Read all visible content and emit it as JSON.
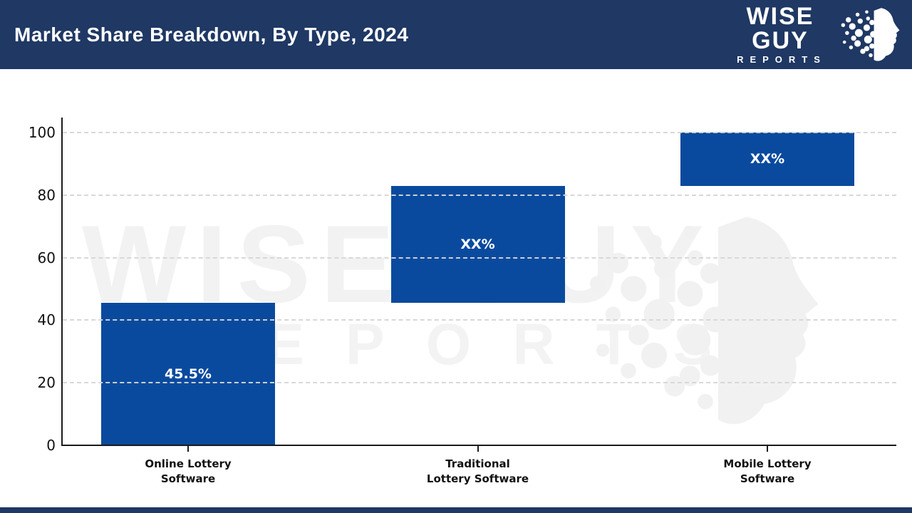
{
  "header": {
    "title": "Market Share Breakdown, By Type, 2024",
    "logo": {
      "line1": "WISE GUY",
      "line2": "REPORTS"
    }
  },
  "watermark": {
    "line1": "WISE GUY",
    "line2": "REPORTS"
  },
  "colors": {
    "header_bg": "#1f3864",
    "bar": "#0a4a9e",
    "gridline": "#d6d6d6",
    "axis": "#1a1a1a",
    "watermark": "#f2f2f2"
  },
  "chart_data": {
    "type": "bar",
    "subtype": "waterfall-stacked",
    "title": "Market Share Breakdown, By Type, 2024",
    "xlabel": "",
    "ylabel": "",
    "ylim": [
      0,
      105
    ],
    "yticks": [
      0,
      20,
      40,
      60,
      80,
      100
    ],
    "grid": "horizontal-dashed",
    "legend": "none",
    "categories": [
      [
        "Online Lottery",
        "Software"
      ],
      [
        "Traditional",
        "Lottery Software"
      ],
      [
        "Mobile Lottery",
        "Software"
      ]
    ],
    "segments": [
      {
        "start": 0,
        "end": 45.5,
        "label": "45.5%"
      },
      {
        "start": 45.5,
        "end": 83,
        "label": "XX%"
      },
      {
        "start": 83,
        "end": 100,
        "label": "XX%"
      }
    ]
  }
}
